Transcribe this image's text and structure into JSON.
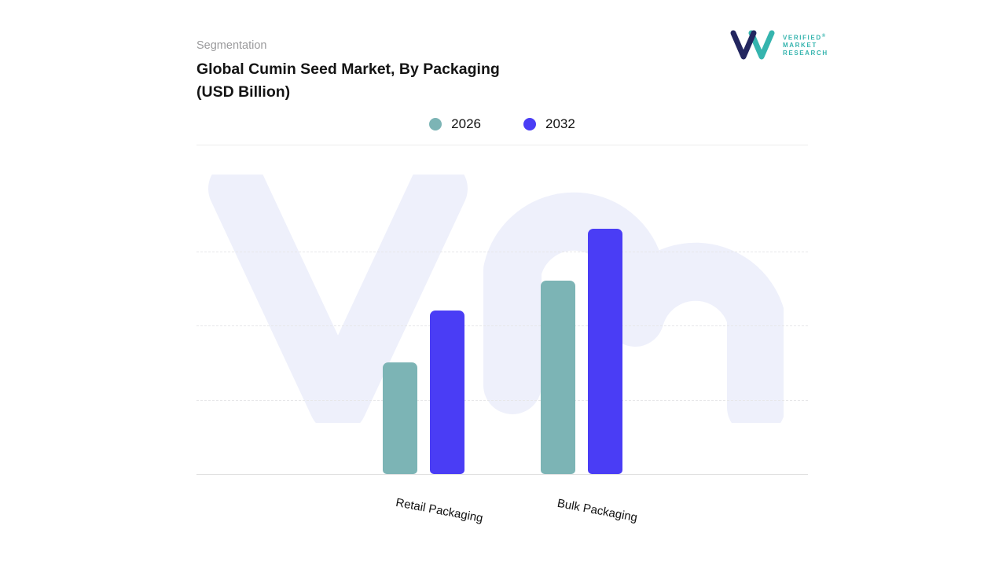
{
  "header": {
    "eyebrow": "Segmentation",
    "title_line1": "Global Cumin Seed Market, By Packaging",
    "title_line2": "(USD Billion)"
  },
  "logo": {
    "line1": "VERIFIED",
    "line2": "MARKET",
    "line3": "RESEARCH",
    "registered_mark": "®",
    "teal": "#35b4ae",
    "navy": "#23265f"
  },
  "legend": [
    {
      "label": "2026",
      "color": "#7cb4b5"
    },
    {
      "label": "2032",
      "color": "#4a3df5"
    }
  ],
  "chart_data": {
    "type": "bar",
    "title": "Global Cumin Seed Market, By Packaging (USD Billion)",
    "categories": [
      "Retail Packaging",
      "Bulk Packaging"
    ],
    "series": [
      {
        "name": "2026",
        "color": "#7cb4b5",
        "values": [
          1.5,
          2.6
        ]
      },
      {
        "name": "2032",
        "color": "#4a3df5",
        "values": [
          2.2,
          3.3
        ]
      }
    ],
    "ylabel": "USD Billion",
    "ylim": [
      0,
      4
    ],
    "value_axis_labels_visible": false,
    "grid": "dashed-horizontal",
    "legend_position": "top-center",
    "note": "No numeric axis labels shown; values estimated from bar heights"
  },
  "watermark": {
    "text": "vm",
    "color": "#eef0fb"
  }
}
